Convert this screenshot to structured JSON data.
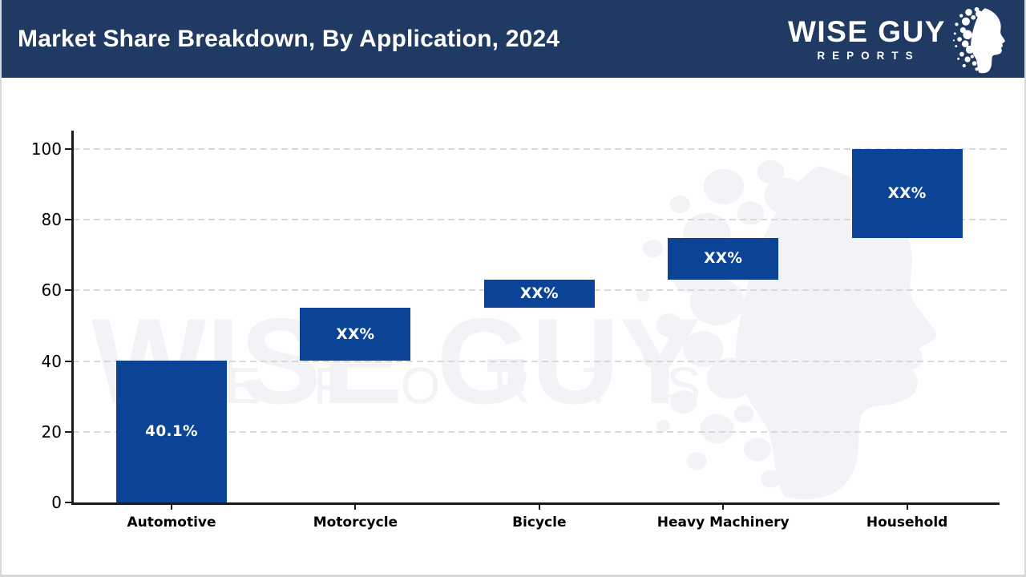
{
  "header": {
    "title": "Market Share Breakdown, By Application, 2024",
    "logo": {
      "line1": "WISE GUY",
      "line2": "REPORTS"
    }
  },
  "watermark": {
    "line1": "WISE GUY",
    "line2": "REPORTS"
  },
  "chart_data": {
    "type": "bar",
    "subtype": "waterfall",
    "title": "Market Share Breakdown, By Application, 2024",
    "categories": [
      "Automotive",
      "Motorcycle",
      "Bicycle",
      "Heavy Machinery",
      "Household"
    ],
    "segments": [
      {
        "category": "Automotive",
        "start": 0,
        "end": 40.1,
        "label": "40.1%"
      },
      {
        "category": "Motorcycle",
        "start": 40.1,
        "end": 55.0,
        "label": "XX%"
      },
      {
        "category": "Bicycle",
        "start": 55.0,
        "end": 63.0,
        "label": "XX%"
      },
      {
        "category": "Heavy Machinery",
        "start": 63.0,
        "end": 74.9,
        "label": "XX%"
      },
      {
        "category": "Household",
        "start": 74.9,
        "end": 100,
        "label": "XX%"
      }
    ],
    "yticks": [
      0,
      20,
      40,
      60,
      80,
      100
    ],
    "ylim": [
      0,
      100
    ],
    "xlabel": "",
    "ylabel": "",
    "legend": "none",
    "grid": "horizontal-dashed"
  },
  "colors": {
    "header_bg": "#203a64",
    "header_text": "#ffffff",
    "bar": "#0b4397",
    "bar_label": "#ffffff",
    "grid": "#d9d9d9",
    "axis": "#1a1a1a",
    "watermark": "#f2f3f6"
  }
}
